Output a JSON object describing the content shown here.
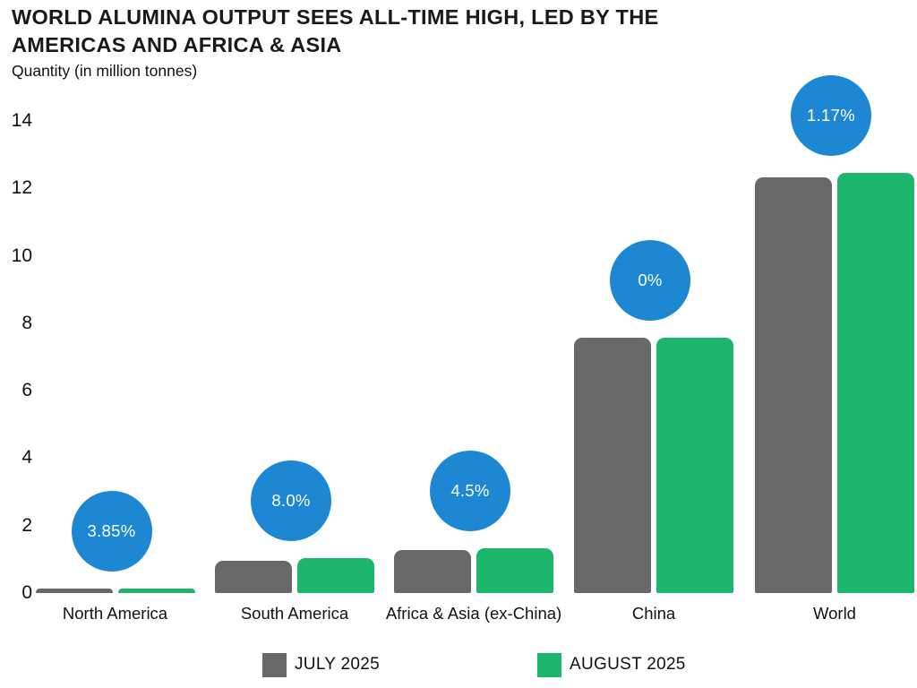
{
  "header": {
    "title_line1": "WORLD ALUMINA OUTPUT SEES ALL-TIME HIGH, LED BY THE",
    "title_line2": "AMERICAS AND AFRICA & ASIA",
    "subtitle": "Quantity (in million tonnes)"
  },
  "chart_data": {
    "type": "bar",
    "title": "WORLD ALUMINA OUTPUT SEES ALL-TIME HIGH, LED BY THE AMERICAS AND AFRICA & ASIA",
    "subtitle": "Quantity (in million tonnes)",
    "xlabel": "",
    "ylabel": "Quantity (in million tonnes)",
    "categories": [
      "North America",
      "South America",
      "Africa & Asia (ex-China)",
      "China",
      "World"
    ],
    "series": [
      {
        "name": "JULY 2025",
        "color": "#686868",
        "values": [
          0.13,
          0.95,
          1.28,
          7.57,
          12.32
        ]
      },
      {
        "name": "AUGUST 2025",
        "color": "#1BB56C",
        "values": [
          0.135,
          1.03,
          1.34,
          7.57,
          12.46
        ]
      }
    ],
    "pct_change_labels": [
      "3.85%",
      "8.0%",
      "4.5%",
      "0%",
      "1.17%"
    ],
    "pct_badge_color": "#1D87D3",
    "pct_badge_text_color": "#ffffff",
    "y_ticks": [
      0,
      2,
      4,
      6,
      8,
      10,
      12,
      14
    ],
    "ylim": [
      0,
      14.7
    ],
    "grid": false,
    "axis_lines": false,
    "legend_position": "bottom"
  },
  "legend": {
    "items": [
      {
        "label": "JULY 2025",
        "color": "#686868"
      },
      {
        "label": "AUGUST 2025",
        "color": "#1BB56C"
      }
    ]
  }
}
